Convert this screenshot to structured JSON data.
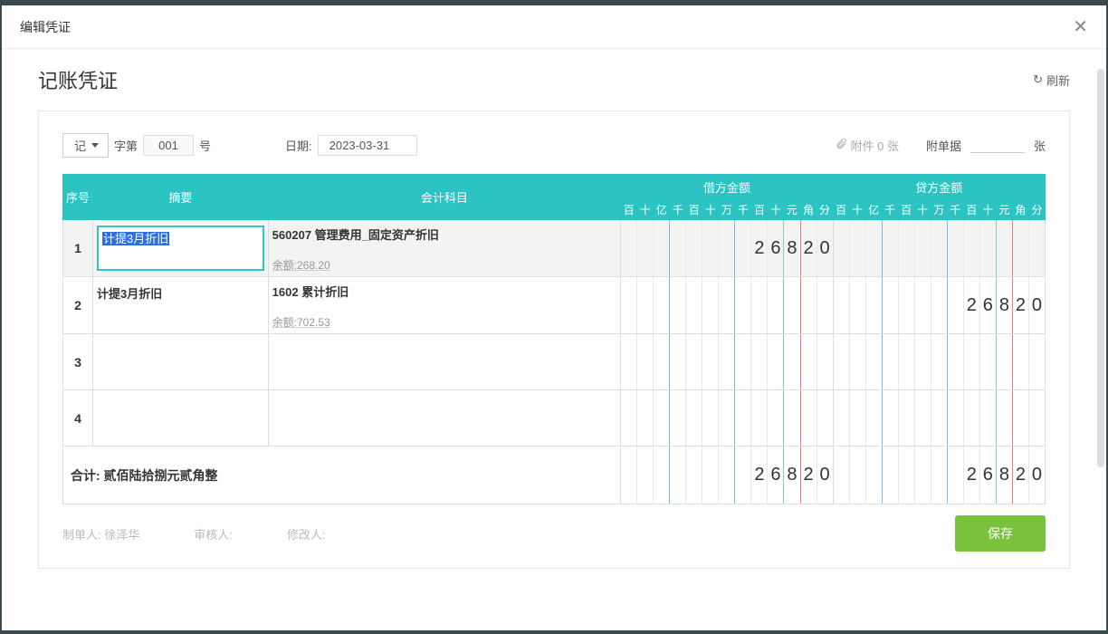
{
  "modal_title": "编辑凭证",
  "doc_title": "记账凭证",
  "refresh_label": "刷新",
  "meta": {
    "ji_label": "记",
    "seq_prefix": "字第",
    "seq_value": "001",
    "seq_suffix": "号",
    "date_label": "日期:",
    "date_value": "2023-03-31",
    "attach_label": "附件 0 张",
    "slip_label": "附单据",
    "slip_suffix": "张"
  },
  "headers": {
    "index": "序号",
    "summary": "摘要",
    "account": "会计科目",
    "debit": "借方金额",
    "credit": "贷方金额",
    "digit_labels": [
      "百",
      "十",
      "亿",
      "千",
      "百",
      "十",
      "万",
      "千",
      "百",
      "十",
      "元",
      "角",
      "分"
    ]
  },
  "amount_cols": 13,
  "separator_after": {
    "2": "blue",
    "6": "blue",
    "9": "green",
    "10": "red"
  },
  "rows": [
    {
      "idx": "1",
      "active": true,
      "summary": "计提3月折旧",
      "summary_editing": true,
      "account": "560207 管理费用_固定资产折旧",
      "balance": "余额:268.20",
      "debit": [
        "",
        "",
        "",
        "",
        "",
        "",
        "",
        "",
        "2",
        "6",
        "8",
        "2",
        "0"
      ],
      "credit": [
        "",
        "",
        "",
        "",
        "",
        "",
        "",
        "",
        "",
        "",
        "",
        "",
        ""
      ]
    },
    {
      "idx": "2",
      "summary": "计提3月折旧",
      "account": "1602 累计折旧",
      "balance": "余额:702.53",
      "debit": [
        "",
        "",
        "",
        "",
        "",
        "",
        "",
        "",
        "",
        "",
        "",
        "",
        ""
      ],
      "credit": [
        "",
        "",
        "",
        "",
        "",
        "",
        "",
        "",
        "2",
        "6",
        "8",
        "2",
        "0"
      ]
    },
    {
      "idx": "3",
      "summary": "",
      "account": "",
      "balance": "",
      "debit": [
        "",
        "",
        "",
        "",
        "",
        "",
        "",
        "",
        "",
        "",
        "",
        "",
        ""
      ],
      "credit": [
        "",
        "",
        "",
        "",
        "",
        "",
        "",
        "",
        "",
        "",
        "",
        "",
        ""
      ]
    },
    {
      "idx": "4",
      "summary": "",
      "account": "",
      "balance": "",
      "debit": [
        "",
        "",
        "",
        "",
        "",
        "",
        "",
        "",
        "",
        "",
        "",
        "",
        ""
      ],
      "credit": [
        "",
        "",
        "",
        "",
        "",
        "",
        "",
        "",
        "",
        "",
        "",
        "",
        ""
      ]
    }
  ],
  "total": {
    "label": "合计:  贰佰陆拾捌元贰角整",
    "debit": [
      "",
      "",
      "",
      "",
      "",
      "",
      "",
      "",
      "2",
      "6",
      "8",
      "2",
      "0"
    ],
    "credit": [
      "",
      "",
      "",
      "",
      "",
      "",
      "",
      "",
      "2",
      "6",
      "8",
      "2",
      "0"
    ]
  },
  "footer": {
    "maker_label": "制单人: ",
    "maker_value": "徐泽华",
    "auditor_label": "审核人:",
    "modifier_label": "修改人:",
    "save_label": "保存"
  }
}
